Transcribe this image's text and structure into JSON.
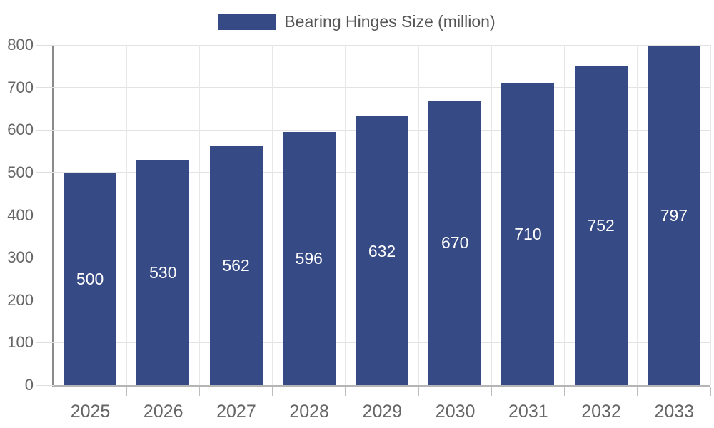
{
  "chart_data": {
    "type": "bar",
    "categories": [
      "2025",
      "2026",
      "2027",
      "2028",
      "2029",
      "2030",
      "2031",
      "2032",
      "2033"
    ],
    "values": [
      500,
      530,
      562,
      596,
      632,
      670,
      710,
      752,
      797
    ],
    "title": "",
    "legend_label": "Bearing Hinges Size (million)",
    "xlabel": "",
    "ylabel": "",
    "ylim": [
      0,
      800
    ],
    "ytick_interval": 100,
    "yticks": [
      0,
      100,
      200,
      300,
      400,
      500,
      600,
      700,
      800
    ],
    "grid": true,
    "legend_position": "top-center",
    "bar_color": "#364A85",
    "bar_value_label_color": "#FFFFFF",
    "axis_tick_label_color": "#666666",
    "legend_text_color": "#555555",
    "gridline_color": "#E3E3E3"
  }
}
